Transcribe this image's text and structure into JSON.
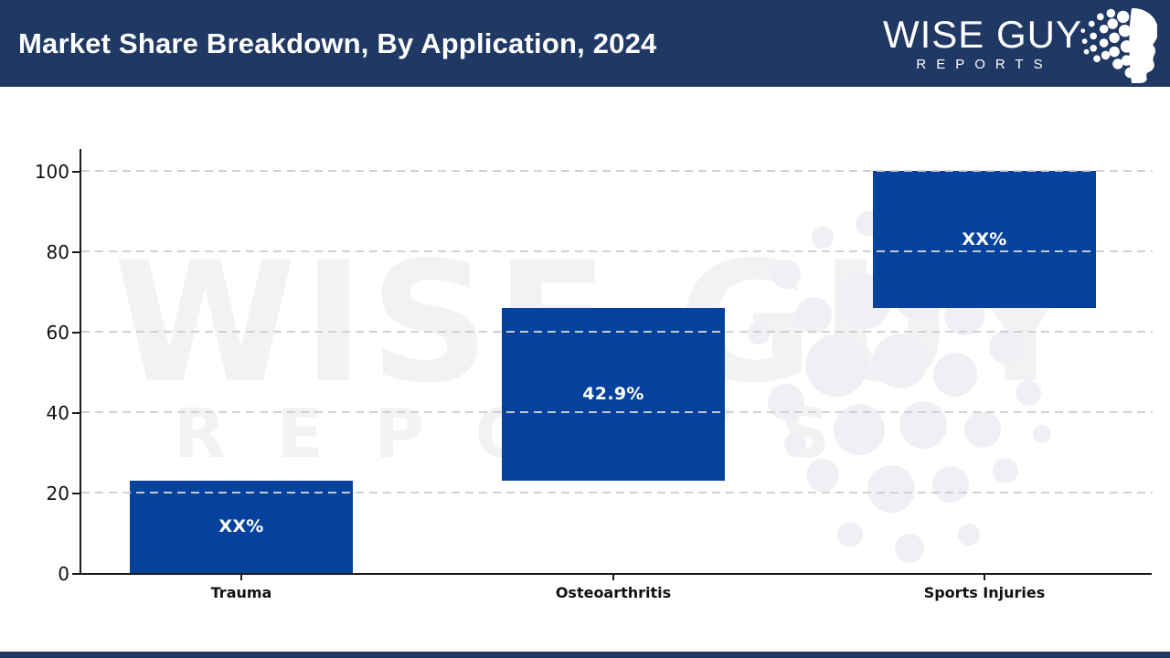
{
  "header": {
    "title": "Market Share Breakdown, By Application, 2024",
    "bg_color": "#1f3864",
    "logo": {
      "line1": "WISE GUY",
      "line2": "REPORTS"
    }
  },
  "watermark": {
    "line1": "WISE GUY",
    "line2": "REPORTS"
  },
  "chart_data": {
    "type": "bar",
    "subtype": "waterfall-floating-bars",
    "title": "Market Share Breakdown, By Application, 2024",
    "categories": [
      "Trauma",
      "Osteoarthritis",
      "Sports Injuries"
    ],
    "series": [
      {
        "name": "Market Share %",
        "segments": [
          {
            "category": "Trauma",
            "start": 0,
            "end": 23.0,
            "value": 23.0,
            "label": "XX%"
          },
          {
            "category": "Osteoarthritis",
            "start": 23.0,
            "end": 65.9,
            "value": 42.9,
            "label": "42.9%"
          },
          {
            "category": "Sports Injuries",
            "start": 65.9,
            "end": 100,
            "value": 34.1,
            "label": "XX%"
          }
        ]
      }
    ],
    "bar_labels": [
      "XX%",
      "42.9%",
      "XX%"
    ],
    "xlabel": "",
    "ylabel": "",
    "ylim": [
      0,
      100
    ],
    "yticks": [
      0,
      20,
      40,
      60,
      80,
      100
    ],
    "grid": "horizontal dashed, drawn above bars",
    "legend": "none",
    "bar_color": "#05429e",
    "bar_label_color": "#ffffff",
    "axis_color": "#1a1a1a",
    "gridline_color": "#cdcfd2"
  },
  "footer": {
    "bar_color": "#1f3864"
  }
}
